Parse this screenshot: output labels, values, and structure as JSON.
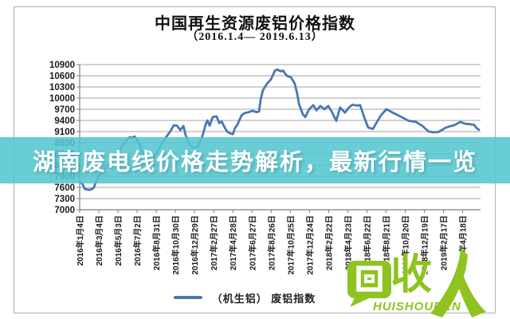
{
  "banner": {
    "text": "湖南废电线价格走势解析，最新行情一览",
    "bg_color": "rgba(84,198,207,0.88)",
    "text_color": "#FFFFFF"
  },
  "logo": {
    "bubble_char": "回",
    "second_char": "收",
    "person_char": "人",
    "caption": "HUISHOUREN",
    "green": "#8FC31F"
  },
  "chart_data": {
    "type": "line",
    "title": "中国再生资源废铝价格指数",
    "subtitle": "（2016.1.4— 2019.6.13）",
    "ylabel": "",
    "xlabel": "",
    "ylim": [
      7000,
      10900
    ],
    "ytick_step": 300,
    "yticks": [
      7000,
      7300,
      7600,
      7900,
      8200,
      8500,
      8800,
      9100,
      9400,
      9700,
      10000,
      10300,
      10600,
      10900
    ],
    "xtick_labels": [
      "2016年1月4日",
      "2016年3月4日",
      "2016年5月3日",
      "2016年7月2日",
      "2016年8月31日",
      "2016年10月30日",
      "2016年12月29日",
      "2017年2月27日",
      "2017年4月28日",
      "2017年6月27日",
      "2017年8月26日",
      "2017年10月25日",
      "2017年12月24日",
      "2018年2月22日",
      "2018年4月23日",
      "2018年6月22日",
      "2018年8月21日",
      "2018年10月20日",
      "2018年12月19日",
      "2019年2月17日",
      "2019年4月18日"
    ],
    "x_range_days": [
      0,
      1256
    ],
    "xtick_interval_days": 60,
    "grid": true,
    "grid_color": "#A3A3A3",
    "axis_color": "#7F7F7F",
    "label_color": "#1A1A1A",
    "legend_position": "bottom",
    "series": [
      {
        "name": "（机生铝） 废铝指数",
        "color": "#4A77B4",
        "points": [
          [
            0,
            7750
          ],
          [
            8,
            7700
          ],
          [
            16,
            7560
          ],
          [
            25,
            7540
          ],
          [
            35,
            7540
          ],
          [
            44,
            7590
          ],
          [
            50,
            7720
          ],
          [
            60,
            7900
          ],
          [
            72,
            8040
          ],
          [
            85,
            8160
          ],
          [
            100,
            8300
          ],
          [
            112,
            8480
          ],
          [
            125,
            8600
          ],
          [
            137,
            8760
          ],
          [
            150,
            8900
          ],
          [
            157,
            8950
          ],
          [
            165,
            8930
          ],
          [
            172,
            8970
          ],
          [
            180,
            8870
          ],
          [
            188,
            8740
          ],
          [
            200,
            8500
          ],
          [
            212,
            8350
          ],
          [
            225,
            8300
          ],
          [
            237,
            8450
          ],
          [
            250,
            8650
          ],
          [
            262,
            8850
          ],
          [
            275,
            9000
          ],
          [
            285,
            9120
          ],
          [
            295,
            9270
          ],
          [
            305,
            9260
          ],
          [
            315,
            9140
          ],
          [
            325,
            9250
          ],
          [
            332,
            9000
          ],
          [
            345,
            8750
          ],
          [
            357,
            8650
          ],
          [
            370,
            8700
          ],
          [
            380,
            8880
          ],
          [
            387,
            9050
          ],
          [
            395,
            9300
          ],
          [
            400,
            9400
          ],
          [
            407,
            9260
          ],
          [
            417,
            9490
          ],
          [
            429,
            9510
          ],
          [
            437,
            9330
          ],
          [
            445,
            9370
          ],
          [
            455,
            9200
          ],
          [
            462,
            9100
          ],
          [
            472,
            9050
          ],
          [
            480,
            9030
          ],
          [
            487,
            9200
          ],
          [
            494,
            9280
          ],
          [
            507,
            9530
          ],
          [
            517,
            9600
          ],
          [
            529,
            9620
          ],
          [
            542,
            9660
          ],
          [
            554,
            9620
          ],
          [
            562,
            9640
          ],
          [
            567,
            9960
          ],
          [
            574,
            10210
          ],
          [
            587,
            10390
          ],
          [
            599,
            10500
          ],
          [
            612,
            10740
          ],
          [
            619,
            10770
          ],
          [
            629,
            10720
          ],
          [
            637,
            10740
          ],
          [
            649,
            10600
          ],
          [
            662,
            10560
          ],
          [
            674,
            10390
          ],
          [
            682,
            10100
          ],
          [
            687,
            9850
          ],
          [
            699,
            9570
          ],
          [
            707,
            9490
          ],
          [
            719,
            9700
          ],
          [
            732,
            9810
          ],
          [
            742,
            9670
          ],
          [
            754,
            9790
          ],
          [
            767,
            9700
          ],
          [
            779,
            9790
          ],
          [
            792,
            9600
          ],
          [
            804,
            9390
          ],
          [
            816,
            9750
          ],
          [
            831,
            9610
          ],
          [
            844,
            9750
          ],
          [
            854,
            9820
          ],
          [
            869,
            9800
          ],
          [
            879,
            9810
          ],
          [
            891,
            9500
          ],
          [
            904,
            9210
          ],
          [
            919,
            9170
          ],
          [
            931,
            9350
          ],
          [
            944,
            9540
          ],
          [
            961,
            9700
          ],
          [
            981,
            9610
          ],
          [
            1006,
            9500
          ],
          [
            1031,
            9390
          ],
          [
            1054,
            9360
          ],
          [
            1074,
            9250
          ],
          [
            1094,
            9100
          ],
          [
            1111,
            9080
          ],
          [
            1124,
            9090
          ],
          [
            1148,
            9210
          ],
          [
            1163,
            9250
          ],
          [
            1173,
            9270
          ],
          [
            1193,
            9360
          ],
          [
            1208,
            9310
          ],
          [
            1223,
            9300
          ],
          [
            1236,
            9280
          ],
          [
            1243,
            9200
          ],
          [
            1251,
            9150
          ]
        ]
      }
    ]
  }
}
